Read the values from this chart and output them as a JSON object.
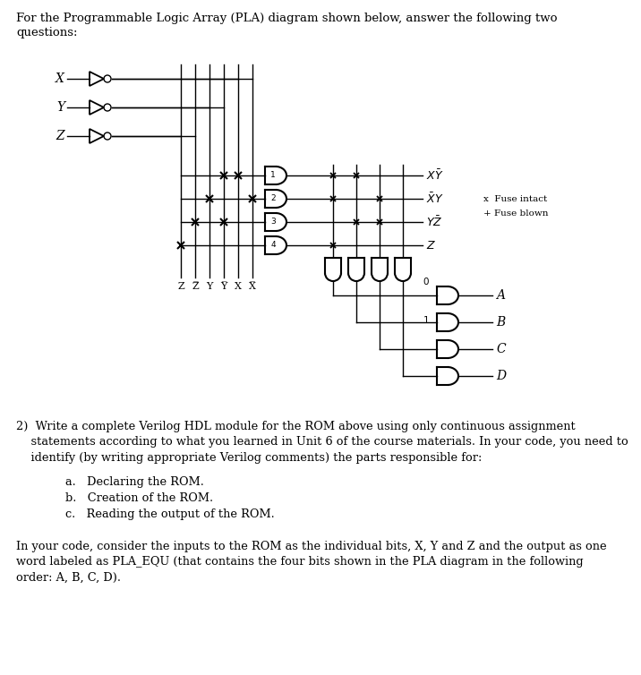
{
  "bg_color": "#ffffff",
  "fg_color": "#000000",
  "title": "For the Programmable Logic Array (PLA) diagram shown below, answer the following two\nquestions:",
  "q2": "2)  Write a complete Verilog HDL module for the ROM above using only continuous assignment\n    statements according to what you learned in Unit 6 of the course materials. In your code, you need to\n    identify (by writing appropriate Verilog comments) the parts responsible for:",
  "list_a": "a.   Declaring the ROM.",
  "list_b": "b.   Creation of the ROM.",
  "list_c": "c.   Reading the output of the ROM.",
  "footer": "In your code, consider the inputs to the ROM as the individual bits, X, Y and Z and the output as one\nword labeled as PLA_EQU (that contains the four bits shown in the PLA diagram in the following\norder: A, B, C, D).",
  "legend1": "x  Fuse intact",
  "legend2": "+ Fuse blown",
  "input_labels": [
    "X",
    "Y",
    "Z"
  ],
  "col_labels": [
    "Z",
    "Z̅",
    "Y",
    "Y̅",
    "X",
    "X̅"
  ],
  "and_nums": [
    "1",
    "2",
    "3",
    "4"
  ],
  "out_labels": [
    "A",
    "B",
    "C",
    "D"
  ],
  "and_out_labels_latex": [
    "$X\\bar{Y}$",
    "$\\bar{X}Y$",
    "$Y\\bar{Z}$",
    "$Z$"
  ]
}
